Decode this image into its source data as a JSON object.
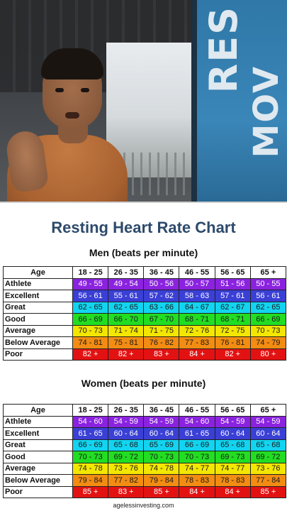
{
  "banner": {
    "text_line1": "RES",
    "text_line2": "MOV"
  },
  "chart": {
    "title": "Resting Heart Rate Chart",
    "footer": "agelessinvesting.com",
    "age_header": "Age",
    "age_groups": [
      "18 - 25",
      "26 - 35",
      "36 - 45",
      "46 - 55",
      "56 - 65",
      "65 +"
    ],
    "row_colors": {
      "Athlete": "#8b22e0",
      "Excellent": "#3a3fd6",
      "Great": "#12d4f0",
      "Good": "#22dd22",
      "Average": "#f3e600",
      "Below Average": "#f28c12",
      "Poor": "#e31212"
    },
    "men": {
      "subtitle": "Men (beats per minute)",
      "rows": [
        {
          "label": "Athlete",
          "values": [
            "49 - 55",
            "49 - 54",
            "50 - 56",
            "50 - 57",
            "51 - 56",
            "50 - 55"
          ]
        },
        {
          "label": "Excellent",
          "values": [
            "56 - 61",
            "55 - 61",
            "57 - 62",
            "58 - 63",
            "57 - 61",
            "56 - 61"
          ]
        },
        {
          "label": "Great",
          "values": [
            "62 - 65",
            "62 - 65",
            "63 - 66",
            "64 - 67",
            "62 - 67",
            "62 - 65"
          ]
        },
        {
          "label": "Good",
          "values": [
            "66 - 69",
            "66 - 70",
            "67 - 70",
            "68 - 71",
            "68 - 71",
            "66 - 69"
          ]
        },
        {
          "label": "Average",
          "values": [
            "70 - 73",
            "71 - 74",
            "71 - 75",
            "72 - 76",
            "72 - 75",
            "70 - 73"
          ]
        },
        {
          "label": "Below Average",
          "values": [
            "74 - 81",
            "75 - 81",
            "76 - 82",
            "77 - 83",
            "76 - 81",
            "74 - 79"
          ]
        },
        {
          "label": "Poor",
          "values": [
            "82 +",
            "82 +",
            "83 +",
            "84 +",
            "82 +",
            "80 +"
          ]
        }
      ]
    },
    "women": {
      "subtitle": "Women (beats per minute)",
      "rows": [
        {
          "label": "Athlete",
          "values": [
            "54 - 60",
            "54 - 59",
            "54 - 59",
            "54 - 60",
            "54 - 59",
            "54 - 59"
          ]
        },
        {
          "label": "Excellent",
          "values": [
            "61 - 65",
            "60 - 64",
            "60 - 64",
            "61 - 65",
            "60 - 64",
            "60 - 64"
          ]
        },
        {
          "label": "Great",
          "values": [
            "66 - 69",
            "65 - 68",
            "65 - 69",
            "66 - 69",
            "65 - 68",
            "65 - 68"
          ]
        },
        {
          "label": "Good",
          "values": [
            "70 - 73",
            "69 - 72",
            "70 - 73",
            "70 - 73",
            "69 - 73",
            "69 - 72"
          ]
        },
        {
          "label": "Average",
          "values": [
            "74 - 78",
            "73 - 76",
            "74 - 78",
            "74 - 77",
            "74 - 77",
            "73 - 76"
          ]
        },
        {
          "label": "Below Average",
          "values": [
            "79 - 84",
            "77 - 82",
            "79 - 84",
            "78 - 83",
            "78 - 83",
            "77 - 84"
          ]
        },
        {
          "label": "Poor",
          "values": [
            "85 +",
            "83 +",
            "85 +",
            "84 +",
            "84 +",
            "85 +"
          ]
        }
      ]
    }
  }
}
